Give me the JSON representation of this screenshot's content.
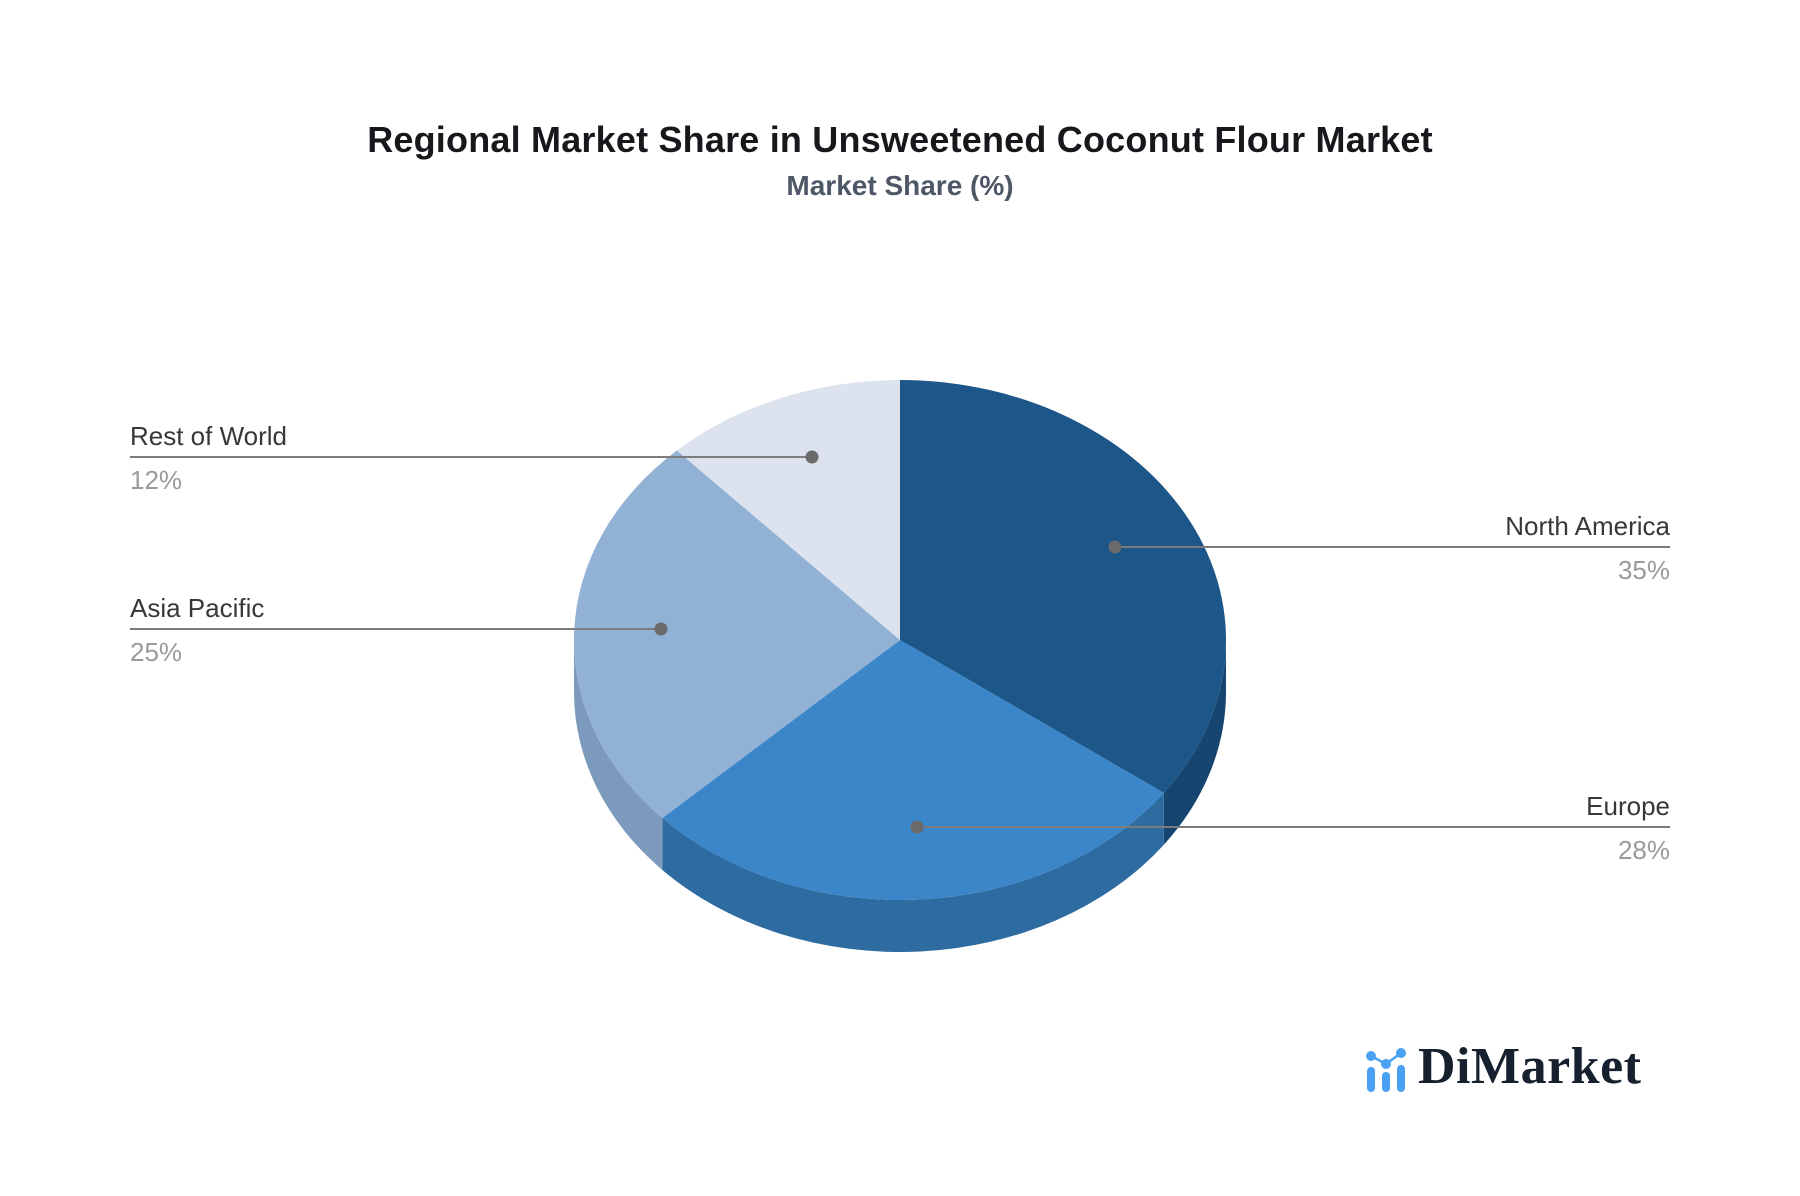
{
  "title": "Regional Market Share in Unsweetened Coconut Flour Market",
  "subtitle": "Market Share (%)",
  "chart_data": {
    "type": "pie",
    "effect": "3d",
    "start_angle_deg": 0,
    "direction": "clockwise",
    "unit": "%",
    "labels": [
      "North America",
      "Europe",
      "Asia Pacific",
      "Rest of World"
    ],
    "values": [
      35,
      28,
      25,
      12
    ],
    "colors": [
      "#1d5688",
      "#3b86c9",
      "#92b2d5",
      "#dce3ee"
    ],
    "side_colors": [
      "#164570",
      "#2d6ba1",
      "#7c9abc",
      "#b9c5d6"
    ],
    "leader_line_color": "#7c7c7c",
    "leader_dot_color": "#6a6a6a",
    "callouts": [
      {
        "id": "rest-of-world",
        "label": "Rest of World",
        "value_label": "12%"
      },
      {
        "id": "asia-pacific",
        "label": "Asia Pacific",
        "value_label": "25%"
      },
      {
        "id": "north-america",
        "label": "North America",
        "value_label": "35%"
      },
      {
        "id": "europe",
        "label": "Europe",
        "value_label": "28%"
      }
    ]
  },
  "logo": {
    "text": "DiMarket",
    "icon": "bar-line-chart-icon",
    "icon_color": "#4aa1f3"
  }
}
